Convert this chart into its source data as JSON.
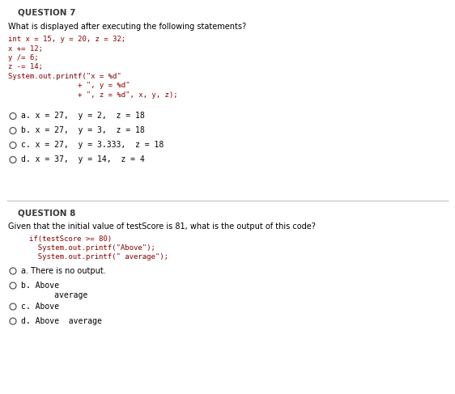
{
  "bg_color": "#ffffff",
  "q7_header": "QUESTION 7",
  "q7_question": "What is displayed after executing the following statements?",
  "q7_code": [
    "int x = 15, y = 20, z = 32;",
    "x += 12;",
    "y /= 6;",
    "z -= 14;",
    "System.out.printf(\"x = %d\"",
    "                + \", y = %d\"",
    "                + \", z = %d\", x, y, z);"
  ],
  "q7_options": [
    "a. x = 27,  y = 2,  z = 18",
    "b. x = 27,  y = 3,  z = 18",
    "c. x = 27,  y = 3.333,  z = 18",
    "d. x = 37,  y = 14,  z = 4"
  ],
  "q8_header": "QUESTION 8",
  "q8_question": "Given that the initial value of testScore is 81, what is the output of this code?",
  "q8_code": [
    "if(testScore >= 80)",
    "  System.out.printf(\"Above\");",
    "  System.out.printf(\" average\");"
  ],
  "header_color": "#3a3a3a",
  "question_color": "#000000",
  "code_color": "#8B0000",
  "option_color": "#000000",
  "circle_color": "#555555",
  "header_fontsize": 7.5,
  "question_fontsize": 7.0,
  "code_fontsize": 6.5,
  "option_fontsize": 7.0,
  "q8_option_a": "a. There is no output.",
  "q8_option_b1": "b. Above",
  "q8_option_b2": "       average",
  "q8_option_c": "c. Above",
  "q8_option_d": "d. Above  average"
}
